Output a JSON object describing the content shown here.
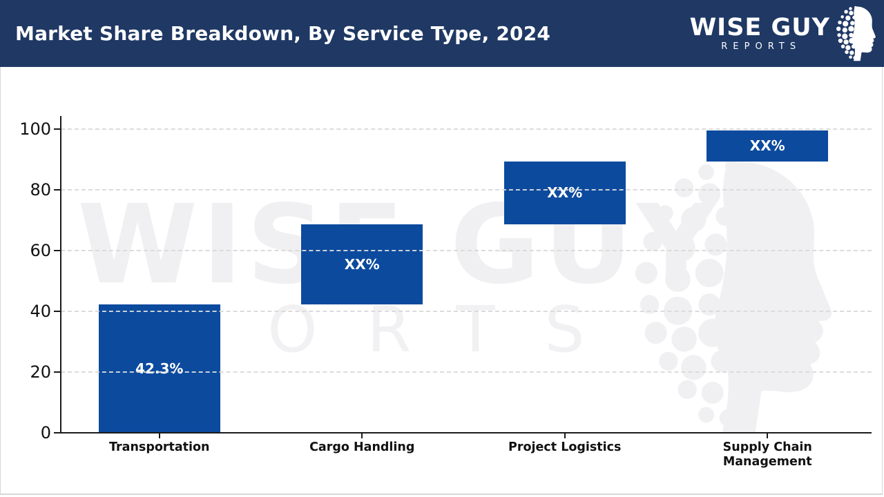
{
  "header": {
    "title": "Market Share Breakdown, By Service Type, 2024",
    "logo": {
      "line1": "WISE GUY",
      "line2": "REPORTS"
    }
  },
  "watermark": {
    "line1": "WISE GUY",
    "line2": "PORTS"
  },
  "colors": {
    "header_bg": "#1f3864",
    "bar": "#0c4a9e",
    "grid": "#d9d9d9",
    "axis": "#1a1a1a",
    "bar_label": "#ffffff",
    "watermark": "#f0f0f2"
  },
  "chart_data": {
    "type": "bar",
    "subtype": "waterfall",
    "title": "Market Share Breakdown, By Service Type, 2024",
    "categories": [
      "Transportation",
      "Cargo Handling",
      "Project Logistics",
      "Supply Chain Management"
    ],
    "segments": [
      {
        "category": "Transportation",
        "start": 0,
        "end": 42.3,
        "label": "42.3%"
      },
      {
        "category": "Cargo Handling",
        "start": 42.3,
        "end": 68.5,
        "label": "XX%"
      },
      {
        "category": "Project Logistics",
        "start": 68.5,
        "end": 89.3,
        "label": "XX%"
      },
      {
        "category": "Supply Chain Management",
        "start": 89.3,
        "end": 99.5,
        "label": "XX%"
      }
    ],
    "xlabel": "",
    "ylabel": "",
    "ylim": [
      0,
      100
    ],
    "yticks": [
      0,
      20,
      40,
      60,
      80,
      100
    ],
    "grid": "horizontal-dashed",
    "legend": "none"
  }
}
